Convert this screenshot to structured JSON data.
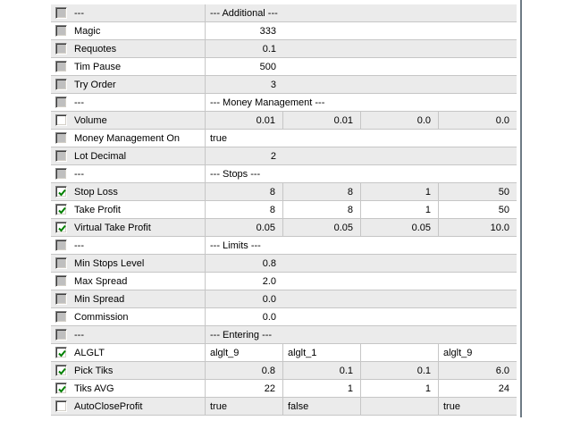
{
  "window": {
    "description": "Expert advisor input parameters table",
    "colors": {
      "check_green": "#008000",
      "alt_row_bg": "#ebebeb",
      "grid_line": "#c6c6c6",
      "disabled_checkbox_fill": "#bfbfbf",
      "panel_edge": "#6e7b85"
    }
  },
  "table": {
    "rows": [
      {
        "kind": "section",
        "label": "---",
        "checkbox": "disabled",
        "values": [
          "--- Additional ---"
        ]
      },
      {
        "kind": "param",
        "label": "Magic",
        "checkbox": "disabled",
        "values": [
          "333"
        ]
      },
      {
        "kind": "param",
        "label": "Requotes",
        "checkbox": "disabled",
        "values": [
          "0.1"
        ]
      },
      {
        "kind": "param",
        "label": "Tim Pause",
        "checkbox": "disabled",
        "values": [
          "500"
        ]
      },
      {
        "kind": "param",
        "label": "Try Order",
        "checkbox": "disabled",
        "values": [
          "3"
        ]
      },
      {
        "kind": "section",
        "label": "---",
        "checkbox": "disabled",
        "values": [
          "--- Money Management ---"
        ]
      },
      {
        "kind": "param",
        "label": "Volume",
        "checkbox": "unchecked",
        "values": [
          "0.01",
          "0.01",
          "0.0",
          "0.0"
        ]
      },
      {
        "kind": "param",
        "label": "Money Management On",
        "checkbox": "disabled",
        "values": [
          "true"
        ]
      },
      {
        "kind": "param",
        "label": "Lot Decimal",
        "checkbox": "disabled",
        "values": [
          "2"
        ]
      },
      {
        "kind": "section",
        "label": "---",
        "checkbox": "disabled",
        "values": [
          "--- Stops ---"
        ]
      },
      {
        "kind": "param",
        "label": "Stop Loss",
        "checkbox": "checked",
        "values": [
          "8",
          "8",
          "1",
          "50"
        ]
      },
      {
        "kind": "param",
        "label": "Take Profit",
        "checkbox": "checked",
        "values": [
          "8",
          "8",
          "1",
          "50"
        ]
      },
      {
        "kind": "param",
        "label": "Virtual Take Profit",
        "checkbox": "checked",
        "values": [
          "0.05",
          "0.05",
          "0.05",
          "10.0"
        ]
      },
      {
        "kind": "section",
        "label": "---",
        "checkbox": "disabled",
        "values": [
          "--- Limits ---"
        ]
      },
      {
        "kind": "param",
        "label": "Min Stops Level",
        "checkbox": "disabled",
        "values": [
          "0.8"
        ]
      },
      {
        "kind": "param",
        "label": "Max Spread",
        "checkbox": "disabled",
        "values": [
          "2.0"
        ]
      },
      {
        "kind": "param",
        "label": "Min Spread",
        "checkbox": "disabled",
        "values": [
          "0.0"
        ]
      },
      {
        "kind": "param",
        "label": "Commission",
        "checkbox": "disabled",
        "values": [
          "0.0"
        ]
      },
      {
        "kind": "section",
        "label": "---",
        "checkbox": "disabled",
        "values": [
          "--- Entering ---"
        ]
      },
      {
        "kind": "param",
        "label": "ALGLT",
        "checkbox": "checked",
        "values": [
          "alglt_9",
          "alglt_1",
          "",
          "alglt_9"
        ]
      },
      {
        "kind": "param",
        "label": "Pick Tiks",
        "checkbox": "checked",
        "values": [
          "0.8",
          "0.1",
          "0.1",
          "6.0"
        ]
      },
      {
        "kind": "param",
        "label": "Tiks AVG",
        "checkbox": "checked",
        "values": [
          "22",
          "1",
          "1",
          "24"
        ]
      },
      {
        "kind": "param",
        "label": "AutoCloseProfit",
        "checkbox": "unchecked",
        "values": [
          "true",
          "false",
          "",
          "true"
        ]
      }
    ]
  }
}
